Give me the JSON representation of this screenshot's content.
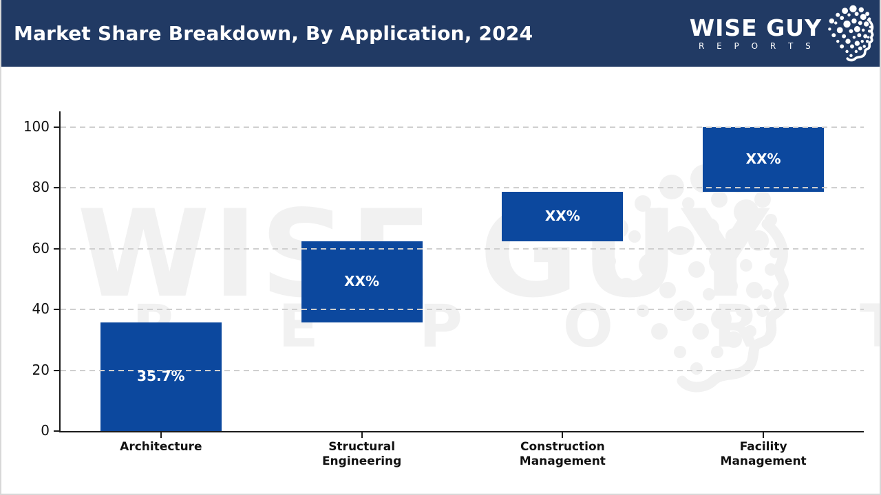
{
  "header": {
    "title": "Market Share Breakdown, By Application, 2024",
    "bg_color": "#213A64",
    "logo": {
      "line1": "WISE GUY",
      "line2": "R E P O R T S"
    }
  },
  "watermark": {
    "line1": "WISE GUY",
    "line2": "R E P O R T S"
  },
  "colors": {
    "bar": "#0C489E",
    "grid": "#CFCFCF",
    "axis": "#1A1A1A",
    "value_label": "#FFFFFF",
    "watermark": "#F1F1F1",
    "edge_hairline": "#D8D8D8"
  },
  "chart_data": {
    "type": "bar",
    "subtype": "waterfall",
    "title": "Market Share Breakdown, By Application, 2024",
    "categories": [
      "Architecture",
      "Structural Engineering",
      "Construction Management",
      "Facility Management"
    ],
    "category_label_lines": [
      [
        "Architecture"
      ],
      [
        "Structural",
        "Engineering"
      ],
      [
        "Construction",
        "Management"
      ],
      [
        "Facility",
        "Management"
      ]
    ],
    "bars": [
      {
        "start": 0,
        "end": 35.7,
        "label": "35.7%"
      },
      {
        "start": 35.7,
        "end": 62.4,
        "label": "XX%"
      },
      {
        "start": 62.4,
        "end": 78.6,
        "label": "XX%"
      },
      {
        "start": 78.6,
        "end": 100,
        "label": "XX%"
      }
    ],
    "ylim": [
      0,
      100
    ],
    "yticks": [
      0,
      20,
      40,
      60,
      80,
      100
    ],
    "grid": "horizontal dashed, drawn over bars",
    "legend": "none",
    "bar_color": "#0C489E",
    "value_label_color": "#FFFFFF"
  }
}
